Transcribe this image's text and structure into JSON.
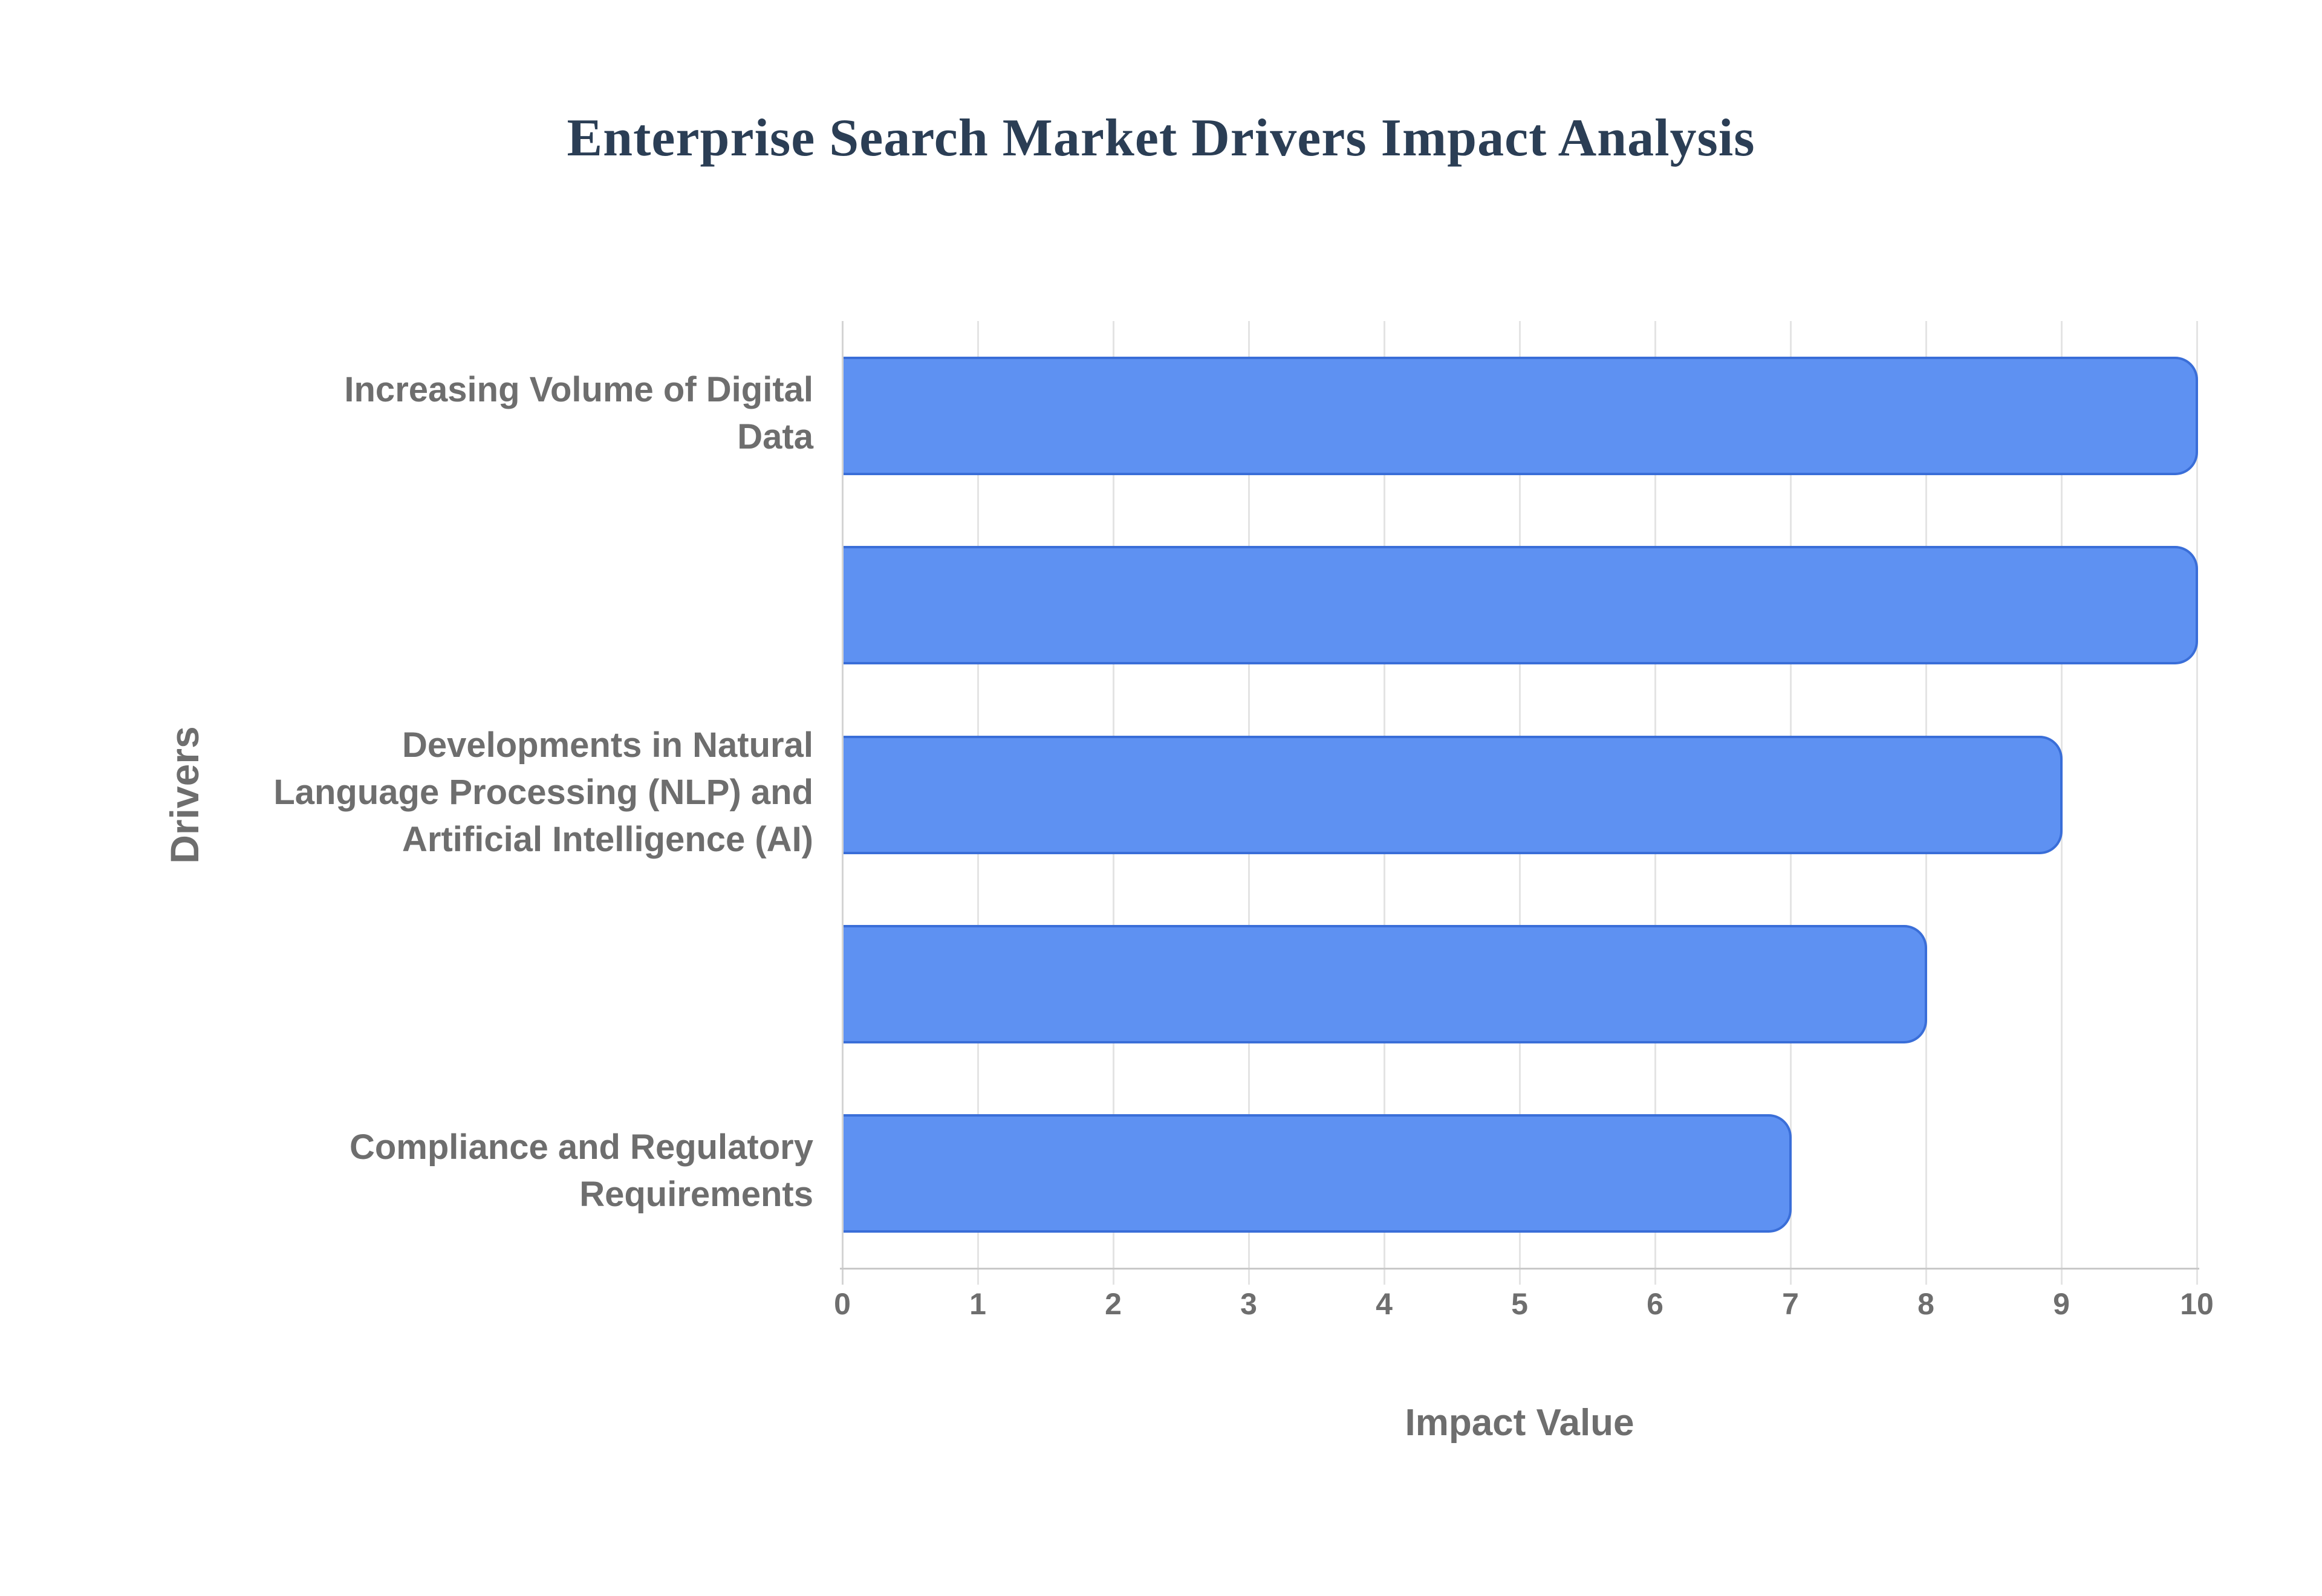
{
  "page": {
    "background": "#ffffff"
  },
  "chart_data": {
    "type": "bar",
    "orientation": "horizontal",
    "title": "Enterprise Search Market Drivers Impact Analysis",
    "xlabel": "Impact Value",
    "ylabel": "Drivers",
    "categories": [
      "Increasing Volume of Digital Data",
      "",
      "Developments in Natural Language Processing (NLP) and Artificial Intelligence (AI)",
      "",
      "Compliance and Regulatory Requirements"
    ],
    "categories_display": [
      "Increasing Volume of Digital\nData",
      "",
      "Developments in Natural\nLanguage Processing (NLP) and\nArtificial Intelligence (AI)",
      "",
      "Compliance and Regulatory\nRequirements"
    ],
    "values": [
      10,
      10,
      9,
      8,
      7
    ],
    "xlim": [
      0,
      10
    ],
    "x_ticks": [
      0,
      1,
      2,
      3,
      4,
      5,
      6,
      7,
      8,
      9,
      10
    ],
    "grid": true,
    "legend": "none",
    "colors": {
      "title_color": "#2B3E55",
      "label_color": "#6E6E6E",
      "bar_fill": "#5E91F2",
      "bar_border": "#3A6ED8",
      "grid_line": "#E4E4E4",
      "axis_line": "#D4D4D4",
      "baseline": "#C9C9C9"
    }
  }
}
